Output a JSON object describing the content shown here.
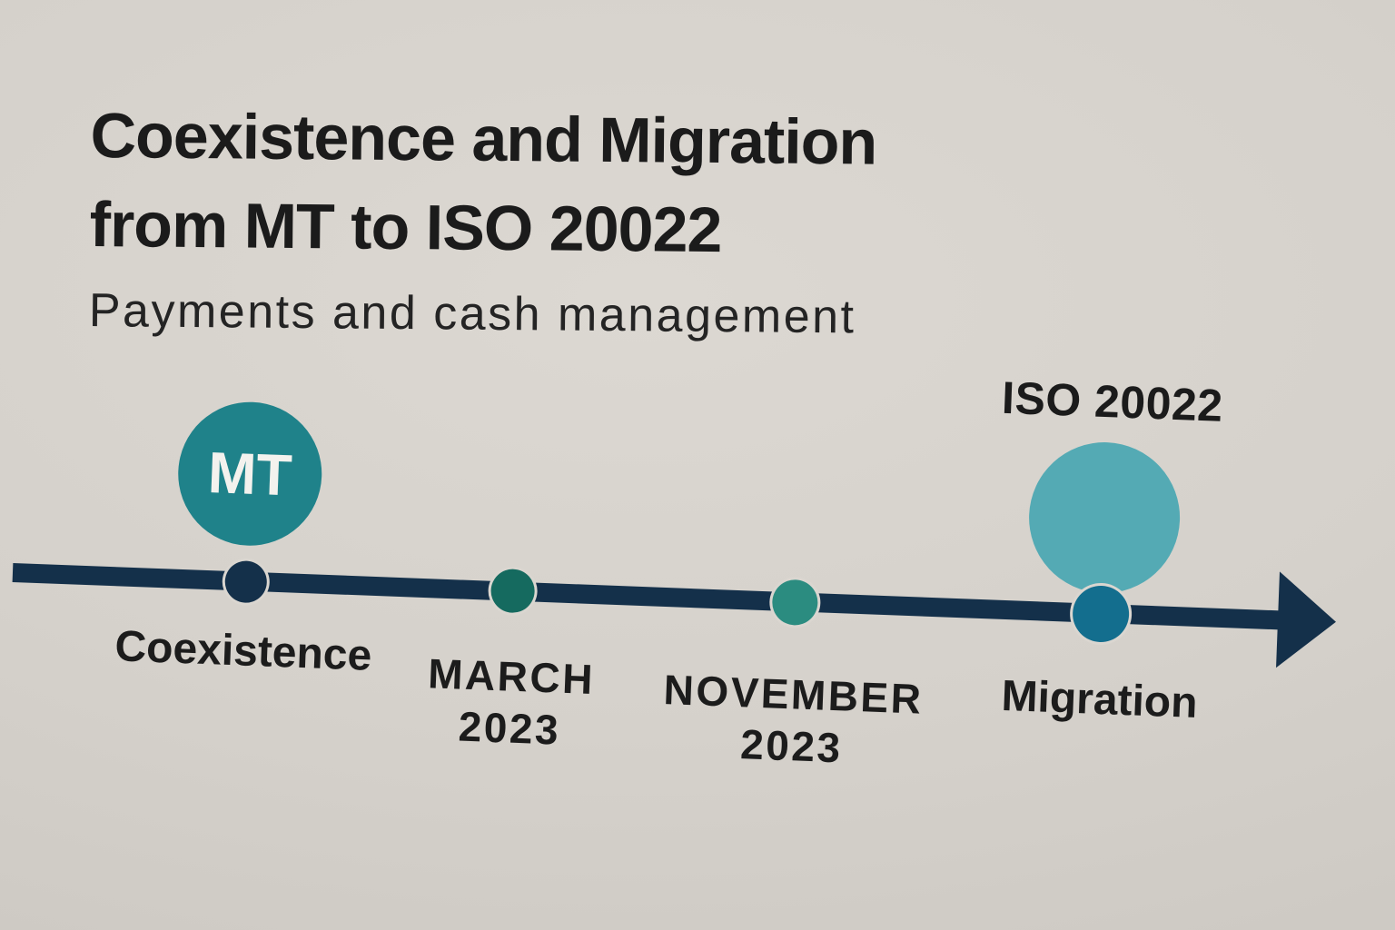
{
  "header": {
    "title_line1": "Coexistence and Migration",
    "title_line2": "from MT to ISO 20022",
    "subtitle": "Payments and cash management"
  },
  "timeline": {
    "direction": "left-to-right",
    "mt_bubble": {
      "label": "MT"
    },
    "iso_bubble": {
      "label": "ISO 20022"
    },
    "milestones": {
      "coexistence": {
        "label": "Coexistence"
      },
      "march": {
        "line1": "MARCH",
        "line2": "2023"
      },
      "november": {
        "line1": "NOVEMBER",
        "line2": "2023"
      },
      "migration": {
        "label": "Migration"
      }
    }
  },
  "colors": {
    "background": "#d5d1cb",
    "text": "#1b1b1b",
    "navy": "#14304a",
    "mt-teal": "#1f828a",
    "iso-teal": "#54aab4",
    "dot-march": "#156a5f",
    "dot-november": "#2b8c80",
    "dot-migration": "#136e8e",
    "bubble-text": "#f3f2ee",
    "halo": "#dad6d0"
  }
}
